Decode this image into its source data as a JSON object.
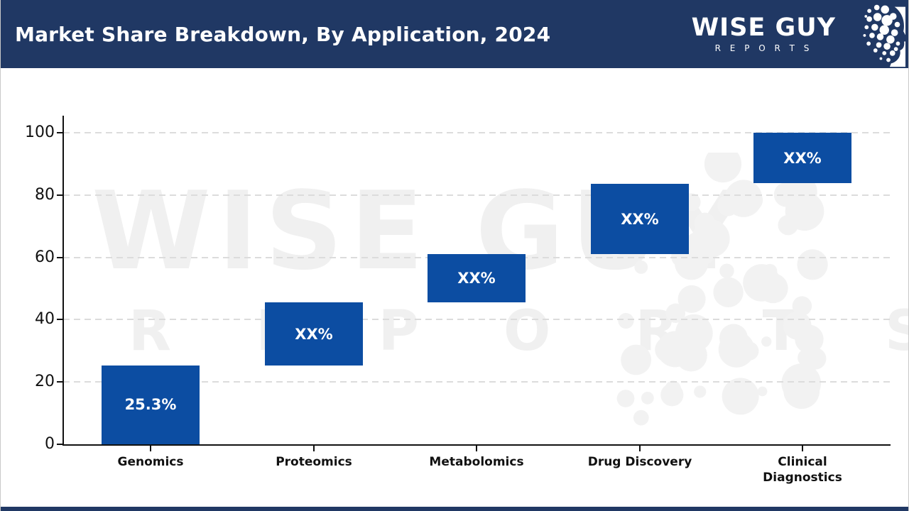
{
  "header": {
    "title": "Market Share Breakdown, By Application, 2024",
    "brand": {
      "line1": "WISE GUY",
      "line2": "R E P O R T S"
    },
    "bg_color": "#203864"
  },
  "watermark": {
    "line1": "WISE GUY",
    "line2": "R E P O R T S"
  },
  "chart_data": {
    "type": "bar",
    "subtype": "waterfall",
    "title": "Market Share Breakdown, By Application, 2024",
    "xlabel": "",
    "ylabel": "",
    "categories": [
      "Genomics",
      "Proteomics",
      "Metabolomics",
      "Drug Discovery",
      "Clinical Diagnostics"
    ],
    "category_lines": [
      [
        "Genomics"
      ],
      [
        "Proteomics"
      ],
      [
        "Metabolomics"
      ],
      [
        "Drug Discovery"
      ],
      [
        "Clinical",
        "Diagnostics"
      ]
    ],
    "segments": [
      {
        "category": "Genomics",
        "start": 0,
        "end": 25.3,
        "label": "25.3%"
      },
      {
        "category": "Proteomics",
        "start": 25.3,
        "end": 45.5,
        "label": "XX%"
      },
      {
        "category": "Metabolomics",
        "start": 45.6,
        "end": 61.0,
        "label": "XX%"
      },
      {
        "category": "Drug Discovery",
        "start": 61.0,
        "end": 83.5,
        "label": "XX%"
      },
      {
        "category": "Clinical Diagnostics",
        "start": 83.8,
        "end": 100,
        "label": "XX%"
      }
    ],
    "yticks": [
      0,
      20,
      40,
      60,
      80,
      100
    ],
    "ylim": [
      0,
      105
    ],
    "bar_color": "#0c4da2",
    "grid": "dashed horizontal, light gray",
    "legend": "none"
  }
}
